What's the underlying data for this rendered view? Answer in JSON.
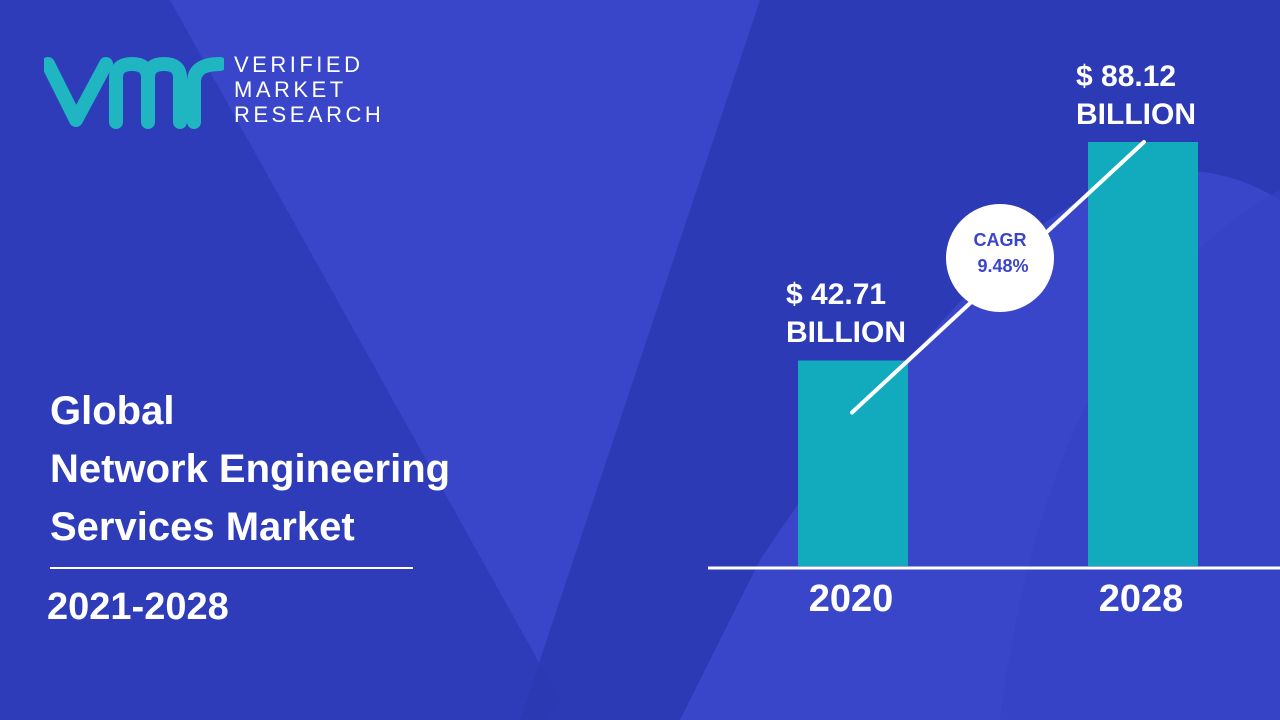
{
  "colors": {
    "background": "#3a46c9",
    "background_shape": "#2b39b3",
    "bar": "#11abbd",
    "text": "#ffffff",
    "logo_teal": "#1fb6c1"
  },
  "logo": {
    "line1": "VERIFIED",
    "line2": "MARKET",
    "line3": "RESEARCH",
    "icon": "vmr-logo-mark"
  },
  "title": {
    "line1": "Global",
    "line2": "Network Engineering",
    "line3": "Services Market"
  },
  "period": "2021-2028",
  "chart_data": {
    "type": "bar",
    "categories": [
      "2020",
      "2028"
    ],
    "values": [
      42.71,
      88.12
    ],
    "value_labels": [
      {
        "line1": "$ 42.71",
        "line2": "BILLION"
      },
      {
        "line1": "$ 88.12",
        "line2": "BILLION"
      }
    ],
    "cagr_label": "CAGR",
    "cagr_value": "9.48%",
    "ylim": [
      0,
      100
    ],
    "grid": false,
    "legend": "none"
  }
}
